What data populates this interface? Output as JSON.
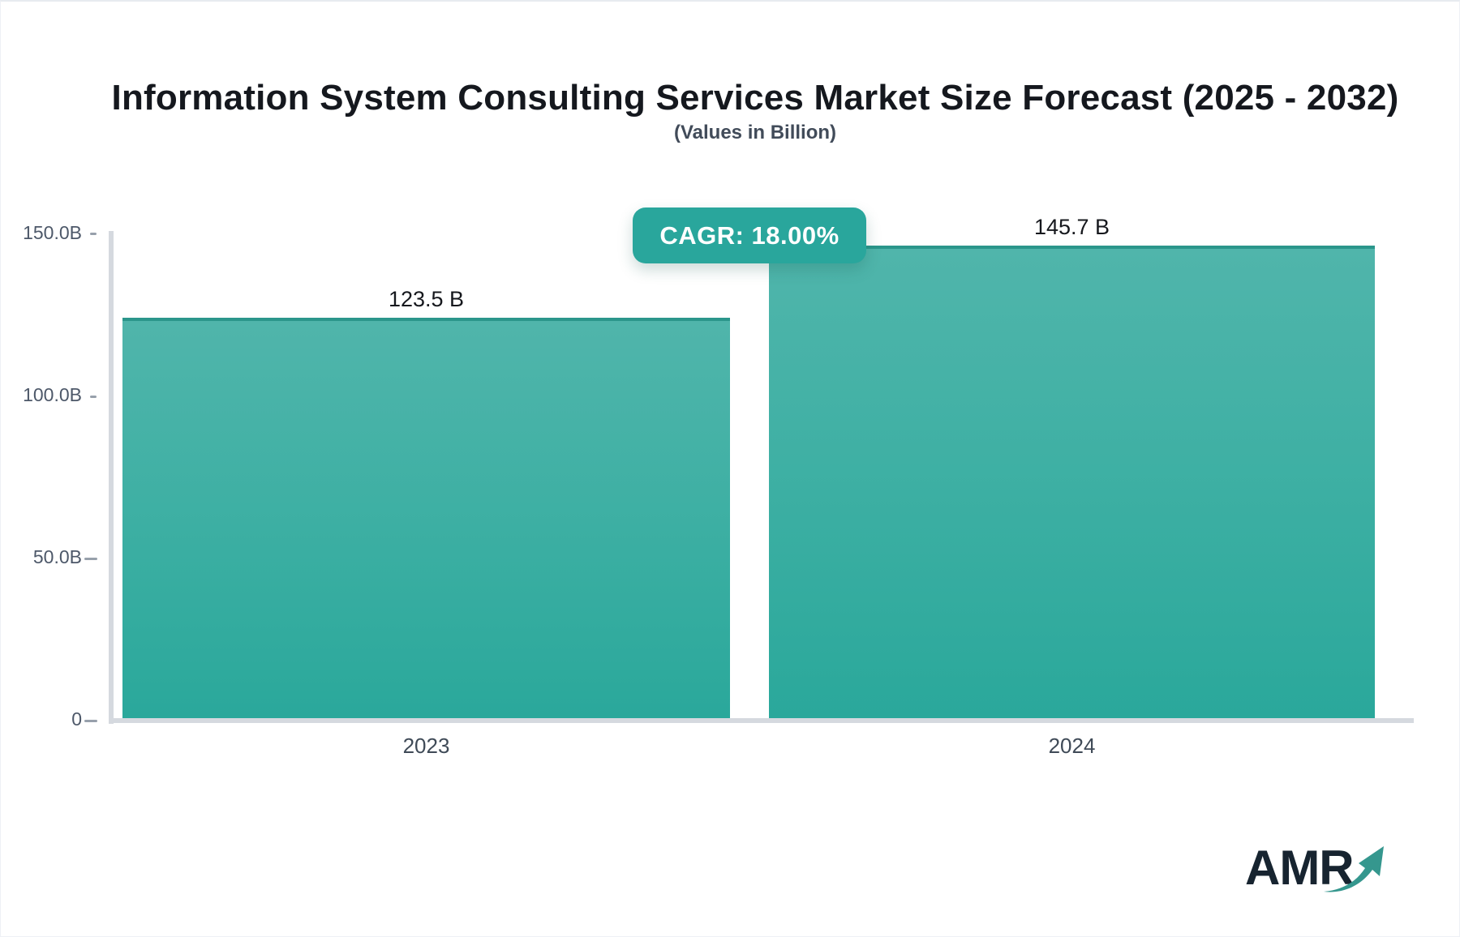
{
  "header": {
    "title": "Information System Consulting Services Market Size Forecast (2025 - 2032)",
    "subtitle": "(Values in Billion)"
  },
  "badge": {
    "label": "CAGR: 18.00%",
    "background": "#29a69c",
    "text_color": "#ffffff"
  },
  "chart_data": {
    "type": "bar",
    "title": "Information System Consulting Services Market Size Forecast (2025 - 2032)",
    "subtitle": "(Values in Billion)",
    "categories": [
      "2023",
      "2024"
    ],
    "values": [
      123.5,
      145.7
    ],
    "value_labels": [
      "123.5 B",
      "145.7 B"
    ],
    "unit": "Billion",
    "cagr": "18.00%",
    "ylim": [
      0,
      150
    ],
    "yticks": [
      {
        "label": "150.0B",
        "value": 150
      },
      {
        "label": "100.0B",
        "value": 100
      },
      {
        "label": "50.0B",
        "value": 50
      },
      {
        "label": "0",
        "value": 0
      }
    ],
    "grid": "off",
    "legend": "none",
    "bar_colors": {
      "top": "#50b5ab",
      "bottom": "#2aa89b",
      "border_top": "#2b968b"
    },
    "axis_color": "#d5d9df"
  },
  "branding": {
    "logo_text": "AMR",
    "arrow_color": "#35978e"
  }
}
